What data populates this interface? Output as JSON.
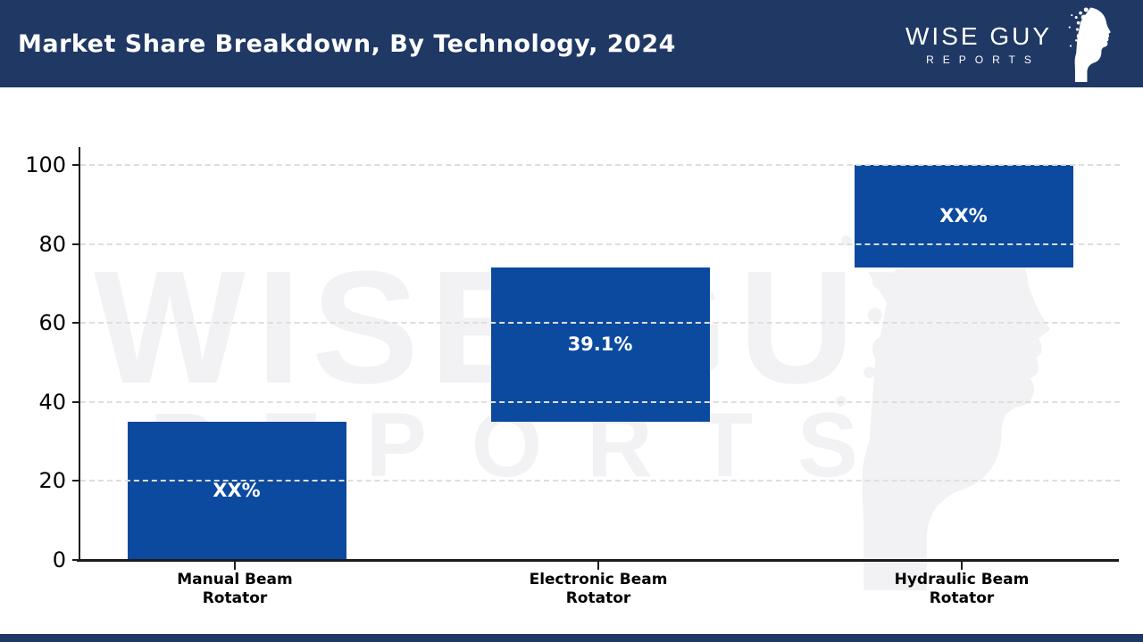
{
  "header": {
    "title": "Market Share Breakdown, By Technology, 2024",
    "logo": {
      "brand": "WISE GUY",
      "reports": "REPORTS"
    }
  },
  "watermark": {
    "brand": "WISE GUY",
    "reports": "REPORTS"
  },
  "chart_data": {
    "type": "bar",
    "subtype": "floating-segment-waterfall",
    "title": "Market Share Breakdown, By Technology, 2024",
    "categories": [
      "Manual Beam Rotator",
      "Electronic Beam Rotator",
      "Hydraulic Beam Rotator"
    ],
    "category_label_lines": [
      [
        "Manual Beam",
        "Rotator"
      ],
      [
        "Electronic Beam",
        "Rotator"
      ],
      [
        "Hydraulic Beam",
        "Rotator"
      ]
    ],
    "segments": [
      {
        "category": "Manual Beam Rotator",
        "from": 0,
        "to": 35,
        "label": "XX%"
      },
      {
        "category": "Electronic Beam Rotator",
        "from": 35,
        "to": 74.1,
        "label": "39.1%"
      },
      {
        "category": "Hydraulic Beam Rotator",
        "from": 74.1,
        "to": 100,
        "label": "XX%"
      }
    ],
    "yticks": [
      0,
      20,
      40,
      60,
      80,
      100
    ],
    "ylim": [
      0,
      104.5
    ],
    "xlabel": "",
    "ylabel": "",
    "grid": "horizontal-dashed",
    "legend_position": "none",
    "bar_color": "#0b4a9f",
    "bar_label_color": "#ffffff",
    "header_color": "#1f3864"
  }
}
